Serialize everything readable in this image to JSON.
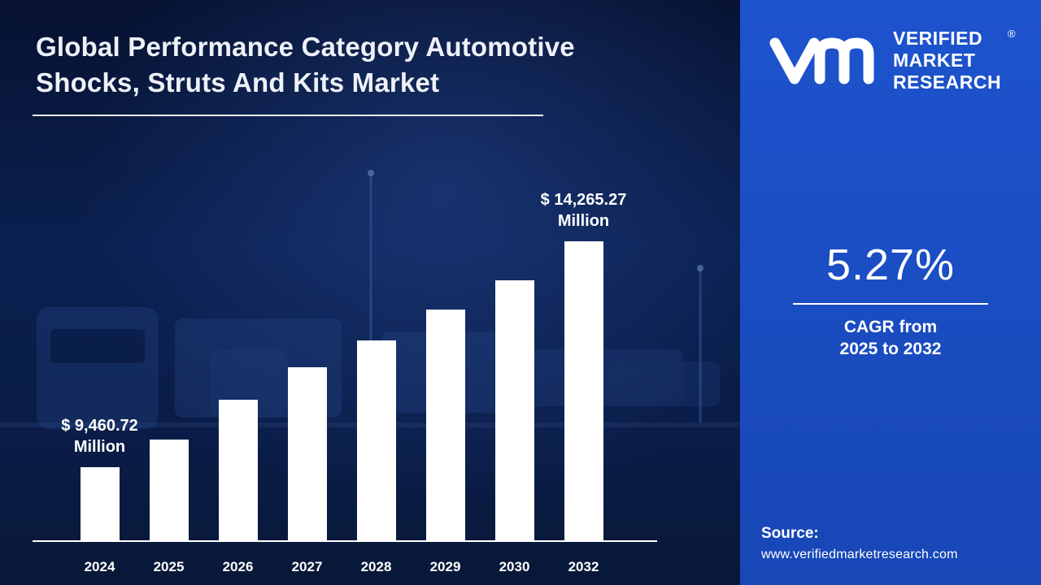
{
  "header": {
    "title_line1": "Global Performance Category Automotive",
    "title_line2": "Shocks, Struts And Kits Market"
  },
  "brand": {
    "line1": "VERIFIED",
    "line2": "MARKET",
    "line3": "RESEARCH",
    "registered": "®"
  },
  "panel": {
    "cagr_value": "5.27%",
    "cagr_line1": "CAGR from",
    "cagr_line2": "2025 to 2032",
    "source_label": "Source:",
    "source_url": "www.verifiedmarketresearch.com"
  },
  "colors": {
    "panel_blue": "#1a4cc0",
    "background_navy": "#0a1c44",
    "bar_color": "#ffffff",
    "text_color": "#ffffff"
  },
  "chart_data": {
    "type": "bar",
    "title": "Global Performance Category Automotive Shocks, Struts And Kits Market",
    "unit": "USD Million",
    "categories": [
      "2024",
      "2025",
      "2026",
      "2027",
      "2028",
      "2029",
      "2030",
      "2032"
    ],
    "values": [
      9460.72,
      10050,
      10900,
      11590,
      12160,
      12810,
      13430,
      14265.27
    ],
    "first_bar_label": {
      "line1": "$ 9,460.72",
      "line2": "Million"
    },
    "last_bar_label": {
      "line1": "$ 14,265.27",
      "line2": "Million"
    },
    "ylim": [
      7900,
      14265.27
    ],
    "xlabel": "",
    "ylabel": "",
    "grid": false,
    "legend": false,
    "bar_color": "#ffffff"
  }
}
